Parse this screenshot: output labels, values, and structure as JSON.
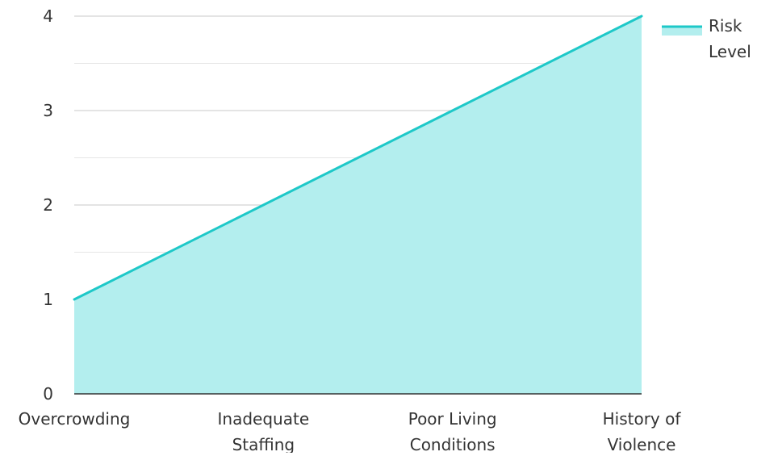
{
  "chart_data": {
    "type": "area",
    "categories": [
      "Overcrowding",
      "Inadequate Staffing",
      "Poor Living Conditions",
      "History of Violence"
    ],
    "series": [
      {
        "name": "Risk Level",
        "values": [
          1,
          2,
          3,
          4
        ]
      }
    ],
    "ylim": [
      0,
      4
    ],
    "yticks": [
      0,
      1,
      2,
      3,
      4
    ],
    "grid": true,
    "legend_position": "top-right",
    "colors": {
      "line": "#1ec8c8",
      "fill": "#b3eeee",
      "grid_major": "#c8c8c8",
      "grid_minor": "#e6e6e6",
      "axis": "#333333"
    }
  }
}
